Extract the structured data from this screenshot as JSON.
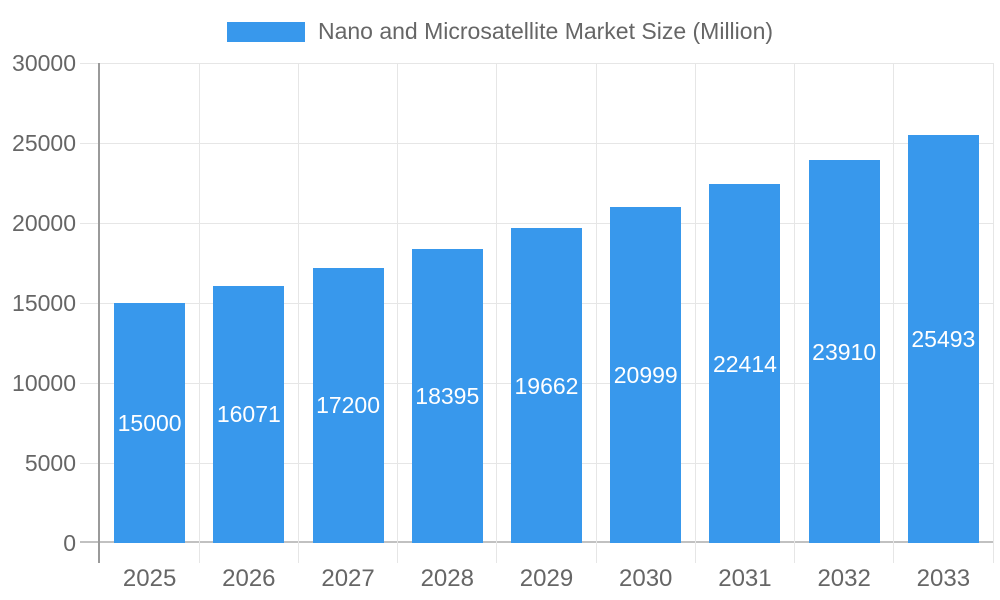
{
  "chart_data": {
    "type": "bar",
    "title": "Nano and Microsatellite Market Size (Million)",
    "legend_position": "top",
    "categories": [
      "2025",
      "2026",
      "2027",
      "2028",
      "2029",
      "2030",
      "2031",
      "2032",
      "2033"
    ],
    "values": [
      15000,
      16071,
      17200,
      18395,
      19662,
      20999,
      22414,
      23910,
      25493
    ],
    "xlabel": "",
    "ylabel": "",
    "ylim": [
      0,
      30000
    ],
    "ytick_step": 5000,
    "yticks": [
      0,
      5000,
      10000,
      15000,
      20000,
      25000,
      30000
    ],
    "grid": true,
    "colors": {
      "bar": "#3898EC",
      "value_label": "#FFFFFF",
      "axis_text": "#666666",
      "gridline": "#E6E6E6",
      "axis_line": "#9A9A9A",
      "zero_line": "#C1C1C1"
    }
  }
}
